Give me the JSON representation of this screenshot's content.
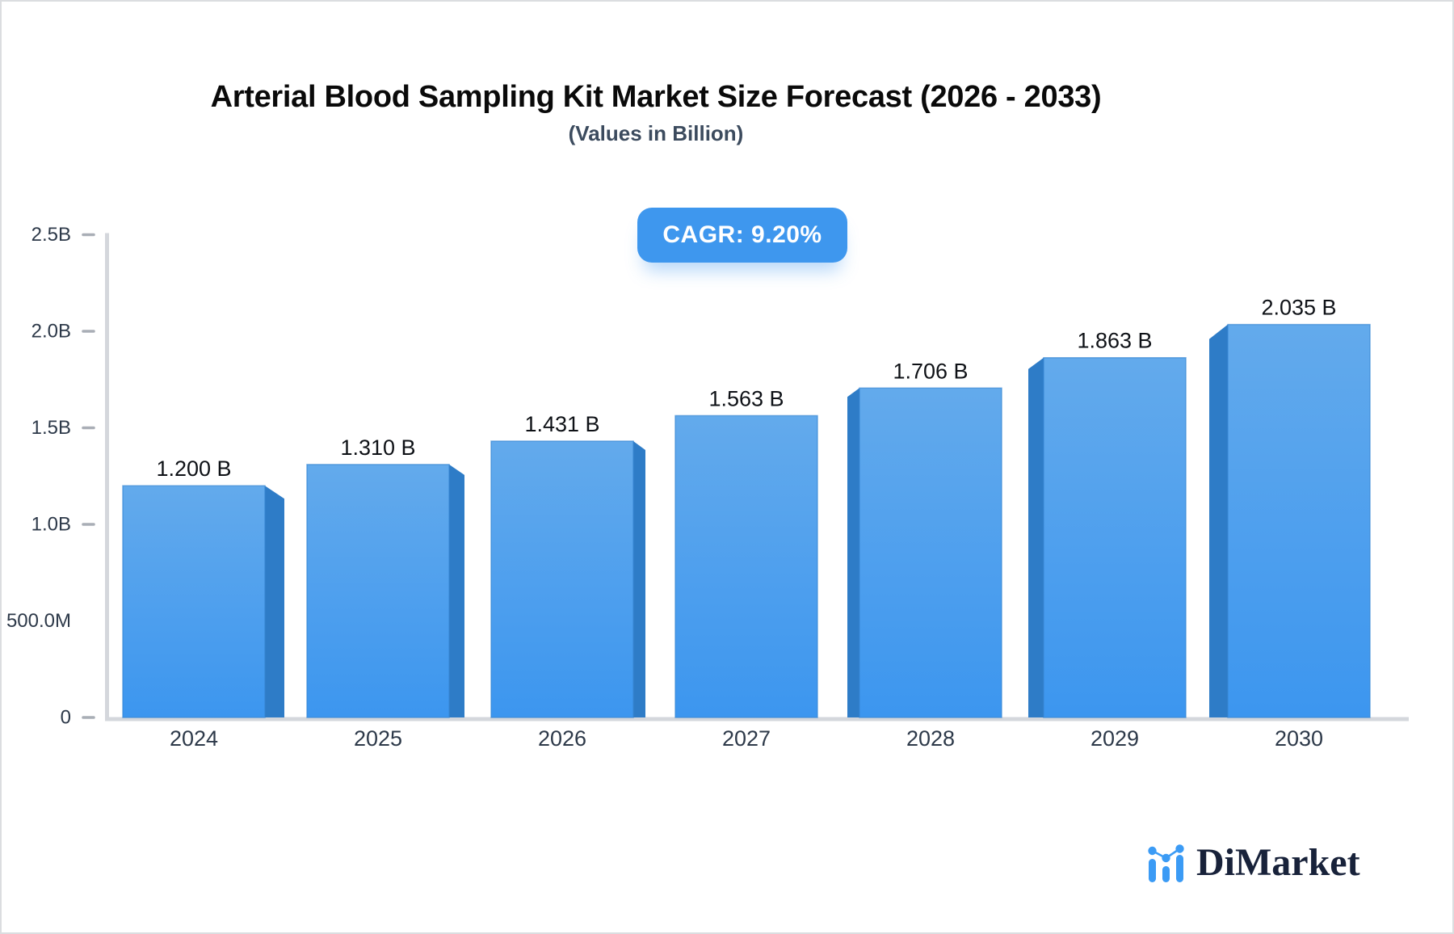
{
  "chart_data": {
    "type": "bar",
    "title": "Arterial Blood Sampling Kit Market Size Forecast (2026 - 2033)",
    "subtitle": "(Values in Billion)",
    "cagr_label": "CAGR: 9.20%",
    "categories": [
      "2024",
      "2025",
      "2026",
      "2027",
      "2028",
      "2029",
      "2030"
    ],
    "values": [
      1.2,
      1.31,
      1.431,
      1.563,
      1.706,
      1.863,
      2.035
    ],
    "value_labels": [
      "1.200 B",
      "1.310 B",
      "1.431 B",
      "1.563 B",
      "1.706 B",
      "1.863 B",
      "2.035 B"
    ],
    "ylim": [
      0,
      2.5
    ],
    "y_axis_ticks": [
      {
        "label": "2.5B",
        "value": 2.5,
        "tick": true
      },
      {
        "label": "2.0B",
        "value": 2.0,
        "tick": true
      },
      {
        "label": "1.5B",
        "value": 1.5,
        "tick": true
      },
      {
        "label": "1.0B",
        "value": 1.0,
        "tick": true
      },
      {
        "label": "500.0M",
        "value": 0.5,
        "tick": false
      },
      {
        "label": "0",
        "value": 0.0,
        "tick": true
      }
    ],
    "grid": false,
    "legend": false
  },
  "colors": {
    "bar_gradient_top": "#63AAEC",
    "bar_gradient_bottom": "#3C96EF",
    "bar_side": "#2E7CC7",
    "bar_border": "#3585D3",
    "badge_background": "#3E97EE",
    "axis_line": "#D4D7DC",
    "tick_mark": "#A9AEB6",
    "axis_label": "#2D3949",
    "value_label": "#0E1116"
  },
  "brand": {
    "name": "DiMarket"
  }
}
